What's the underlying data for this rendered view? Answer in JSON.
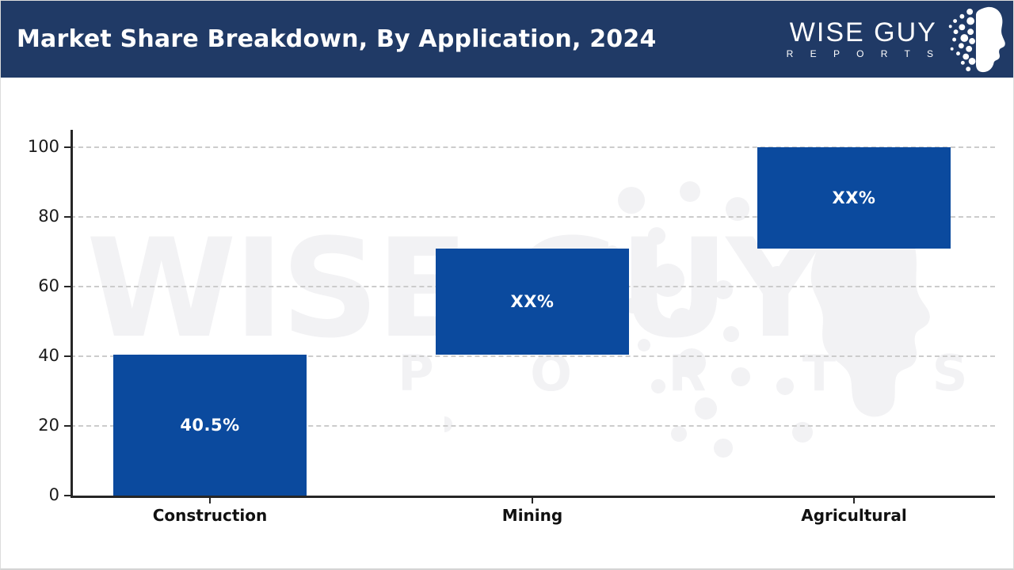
{
  "header": {
    "title": "Market Share Breakdown, By Application, 2024",
    "logo": {
      "wordmark": "WISE GUY",
      "subtext": "R E P O R T S"
    }
  },
  "watermark": {
    "line1": "WISE GUY",
    "line2": "R E P O R T S"
  },
  "colors": {
    "header_bg": "#203a66",
    "bar": "#0b4a9e",
    "axis": "#262626",
    "gridline": "#cccccc",
    "bar_label": "#ffffff",
    "watermark": "#f2f2f4"
  },
  "chart_data": {
    "type": "bar",
    "variant": "floating-waterfall",
    "title": "Market Share Breakdown, By Application, 2024",
    "categories": [
      "Construction",
      "Mining",
      "Agricultural"
    ],
    "bars": [
      {
        "category": "Construction",
        "start": 0,
        "end": 40.5,
        "label": "40.5%"
      },
      {
        "category": "Mining",
        "start": 40.5,
        "end": 70.8,
        "label": "XX%"
      },
      {
        "category": "Agricultural",
        "start": 70.8,
        "end": 100,
        "label": "XX%"
      }
    ],
    "yticks": [
      0,
      20,
      40,
      60,
      80,
      100
    ],
    "ylim": [
      0,
      105
    ],
    "xlabel": "",
    "ylabel": "",
    "grid": "horizontal-dashed",
    "legend": "none"
  }
}
